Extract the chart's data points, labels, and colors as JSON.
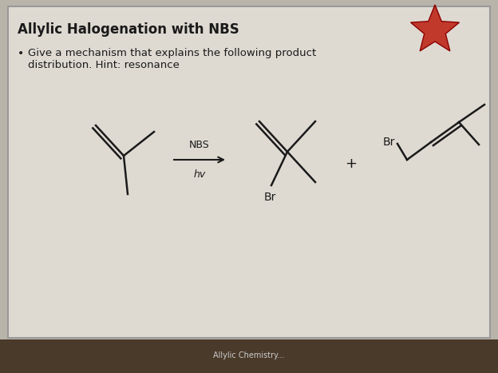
{
  "title": "Allylic Halogenation with NBS",
  "bullet": "Give a mechanism that explains the following product\ndistribution. Hint: resonance",
  "reagent_top": "NBS",
  "reagent_bottom": "hv",
  "plus_sign": "+",
  "br_label1": "Br",
  "br_label2": "Br",
  "bg_color": "#b8b4aa",
  "slide_bg": "#dedad2",
  "title_color": "#1a1a1a",
  "text_color": "#1a1a1a",
  "line_color": "#1a1a1a",
  "star_color": "#c0392b",
  "bottom_bar_color": "#4a3a2a",
  "figsize": [
    6.24,
    4.67
  ],
  "dpi": 100
}
